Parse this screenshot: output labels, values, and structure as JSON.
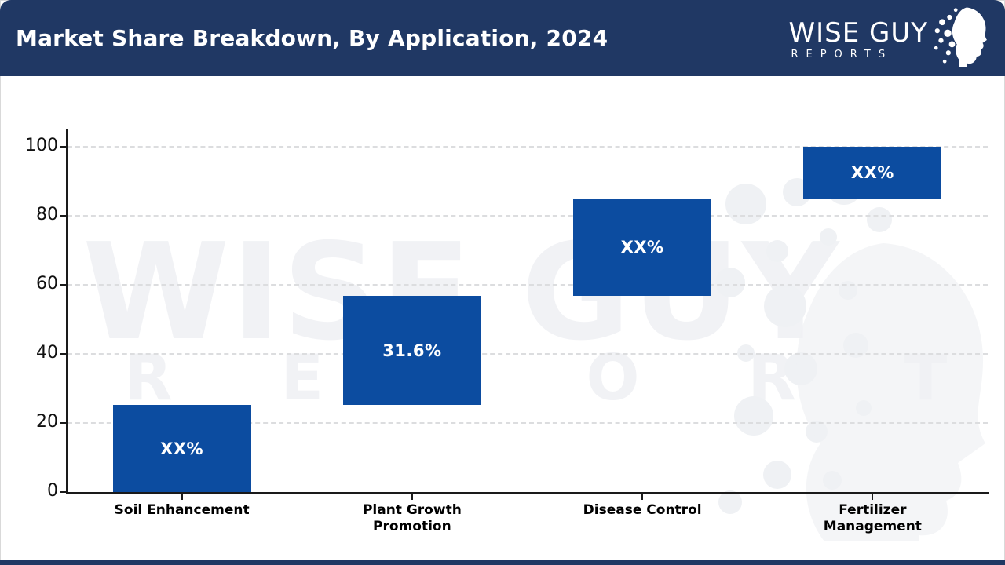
{
  "header": {
    "title": "Market Share Breakdown, By Application, 2024",
    "logo": {
      "line1": "WISE GUY",
      "line2": "REPORTS"
    }
  },
  "watermark": {
    "line1": "WISE GUY",
    "line2": "R E P O R T S"
  },
  "chart_data": {
    "type": "bar",
    "subtype": "waterfall",
    "title": "Market Share Breakdown, By Application, 2024",
    "categories": [
      "Soil Enhancement",
      "Plant Growth\nPromotion",
      "Disease Control",
      "Fertilizer\nManagement"
    ],
    "segments": [
      {
        "category": "Soil Enhancement",
        "start": 0,
        "end": 25.2,
        "label": "XX%"
      },
      {
        "category": "Plant Growth Promotion",
        "start": 25.2,
        "end": 56.8,
        "label": "31.6%"
      },
      {
        "category": "Disease Control",
        "start": 56.8,
        "end": 85.0,
        "label": "XX%"
      },
      {
        "category": "Fertilizer Management",
        "start": 85.0,
        "end": 100.0,
        "label": "XX%"
      }
    ],
    "ylim": [
      0,
      100
    ],
    "yticks": [
      0,
      20,
      40,
      60,
      80,
      100
    ],
    "xlabel": "",
    "ylabel": "",
    "grid": "horizontal-dashed",
    "legend": null,
    "bar_color": "#0c4ca0",
    "bar_label_color": "#ffffff",
    "header_color": "#203864"
  }
}
